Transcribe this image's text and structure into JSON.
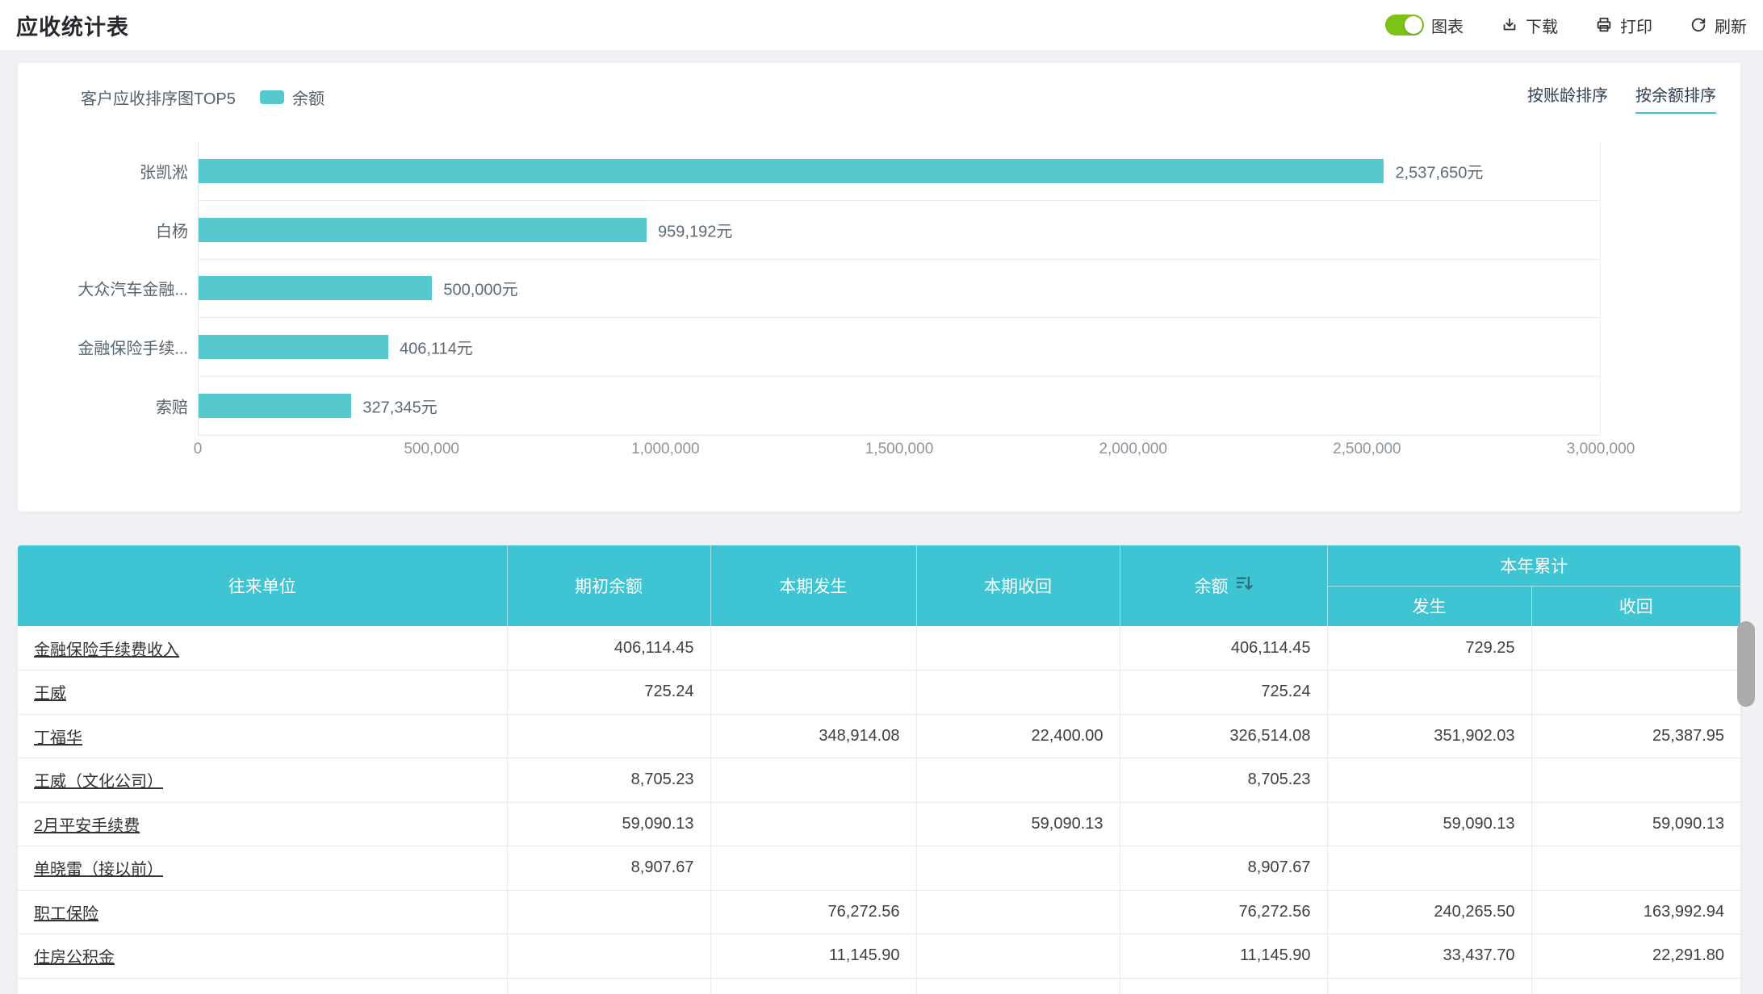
{
  "page": {
    "title": "应收统计表"
  },
  "toolbar": {
    "chart_toggle_label": "图表",
    "toggle_on": true,
    "download_label": "下载",
    "print_label": "打印",
    "refresh_label": "刷新"
  },
  "chart": {
    "title": "客户应收排序图TOP5",
    "legend_label": "余额",
    "tabs": [
      {
        "label": "按账龄排序",
        "active": false
      },
      {
        "label": "按余额排序",
        "active": true
      }
    ]
  },
  "chart_data": {
    "type": "bar",
    "orientation": "horizontal",
    "title": "客户应收排序图TOP5",
    "legend": [
      "余额"
    ],
    "legend_position": "top",
    "categories": [
      "张凯淞",
      "白杨",
      "大众汽车金融...",
      "金融保险手续...",
      "索赔"
    ],
    "values": [
      2537650,
      959192,
      500000,
      406114,
      327345
    ],
    "value_labels": [
      "2,537,650元",
      "959,192元",
      "500,000元",
      "406,114元",
      "327,345元"
    ],
    "xlabel": "",
    "ylabel": "",
    "xlim": [
      0,
      3000000
    ],
    "xtick_labels": [
      "0",
      "500,000",
      "1,000,000",
      "1,500,000",
      "2,000,000",
      "2,500,000",
      "3,000,000"
    ],
    "grid": "category-separators",
    "bar_color": "#55c9cd"
  },
  "table": {
    "header": {
      "unit": "往来单位",
      "opening": "期初余额",
      "current_incurred": "本期发生",
      "current_recovered": "本期收回",
      "balance": "余额",
      "ytd_group": "本年累计",
      "ytd_incurred": "发生",
      "ytd_recovered": "收回"
    },
    "sorted_by": "余额",
    "rows": [
      {
        "name": "金融保险手续费收入",
        "opening": "406,114.45",
        "current_incurred": "",
        "current_recovered": "",
        "balance": "406,114.45",
        "ytd_incurred": "729.25",
        "ytd_recovered": ""
      },
      {
        "name": "王威",
        "opening": "725.24",
        "current_incurred": "",
        "current_recovered": "",
        "balance": "725.24",
        "ytd_incurred": "",
        "ytd_recovered": ""
      },
      {
        "name": "丁福华",
        "opening": "",
        "current_incurred": "348,914.08",
        "current_recovered": "22,400.00",
        "balance": "326,514.08",
        "ytd_incurred": "351,902.03",
        "ytd_recovered": "25,387.95"
      },
      {
        "name": "王威（文化公司）",
        "opening": "8,705.23",
        "current_incurred": "",
        "current_recovered": "",
        "balance": "8,705.23",
        "ytd_incurred": "",
        "ytd_recovered": ""
      },
      {
        "name": "2月平安手续费",
        "opening": "59,090.13",
        "current_incurred": "",
        "current_recovered": "59,090.13",
        "balance": "",
        "ytd_incurred": "59,090.13",
        "ytd_recovered": "59,090.13"
      },
      {
        "name": "单晓雷（接以前）",
        "opening": "8,907.67",
        "current_incurred": "",
        "current_recovered": "",
        "balance": "8,907.67",
        "ytd_incurred": "",
        "ytd_recovered": ""
      },
      {
        "name": "职工保险",
        "opening": "",
        "current_incurred": "76,272.56",
        "current_recovered": "",
        "balance": "76,272.56",
        "ytd_incurred": "240,265.50",
        "ytd_recovered": "163,992.94"
      },
      {
        "name": "住房公积金",
        "opening": "",
        "current_incurred": "11,145.90",
        "current_recovered": "",
        "balance": "11,145.90",
        "ytd_incurred": "33,437.70",
        "ytd_recovered": "22,291.80"
      }
    ]
  },
  "colors": {
    "teal_header": "#3ec4d3",
    "teal_bar": "#55c9cd",
    "tab_underline": "#3bc3d2",
    "toggle_green": "#7ec117",
    "link": "#333333",
    "page_bg": "#eff1f4"
  }
}
